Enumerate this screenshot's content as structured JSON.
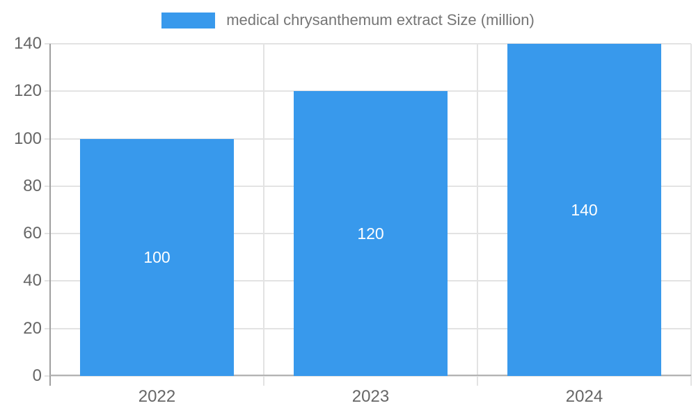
{
  "chart_data": {
    "type": "bar",
    "title": "",
    "legend": "medical chrysanthemum extract Size (million)",
    "legend_position": "top",
    "categories": [
      "2022",
      "2023",
      "2024"
    ],
    "values": [
      100,
      120,
      140
    ],
    "ylim": [
      0,
      140
    ],
    "ytick_step": 20,
    "grid": true,
    "colors": {
      "bar": "#3899EC",
      "value_label": "#FFFFFF",
      "axis_text": "#666666",
      "legend_text": "#757575",
      "gridline": "#E3E3E3",
      "y_axis_line": "#9E9E9E",
      "x_axis_line": "#B3B3B3"
    }
  }
}
